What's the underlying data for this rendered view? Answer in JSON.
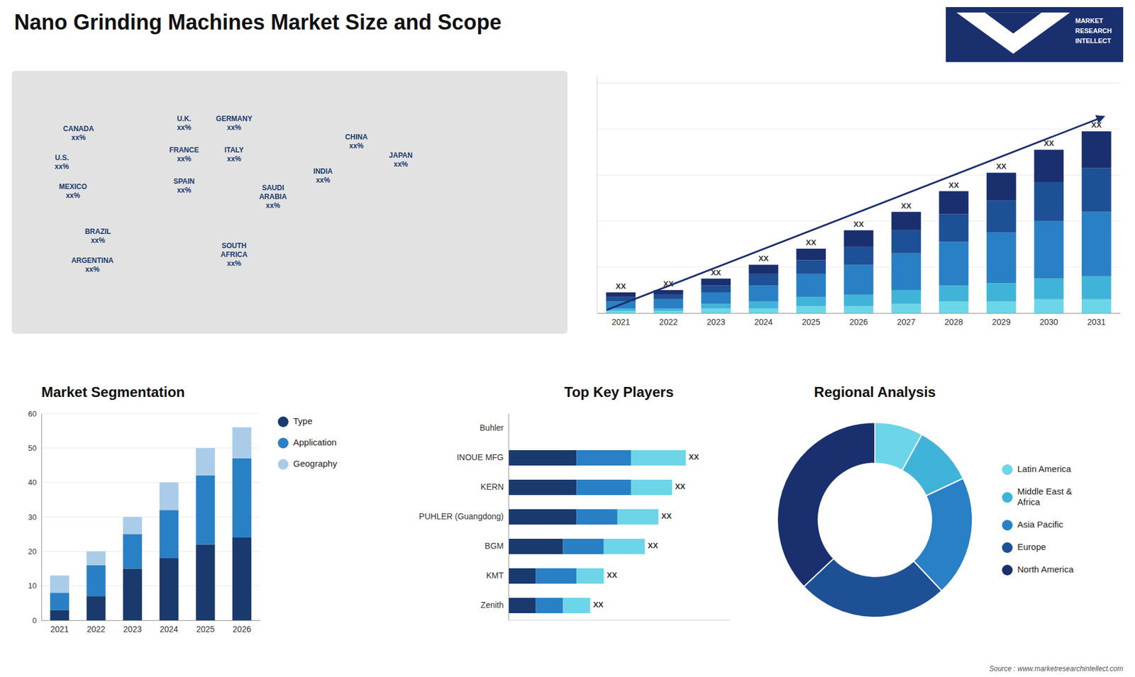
{
  "title": "Nano Grinding Machines Market Size and Scope",
  "annotations": [
    "MARKET\nRESEARCH\nINTELLECT",
    "Source : www.marketresearchintellect.com"
  ],
  "chart_data": [
    {
      "type": "map",
      "color": "#1a3a6e",
      "annotations": [
        "CANADA\nxx%",
        "U.S.\nxx%",
        "MEXICO\nxx%",
        "BRAZIL\nxx%",
        "ARGENTINA\nxx%",
        "U.K.\nxx%",
        "FRANCE\nxx%",
        "SPAIN\nxx%",
        "GERMANY\nxx%",
        "ITALY\nxx%",
        "SAUDI\nARABIA\nxx%",
        "SOUTH\nAFRICA\nxx%",
        "CHINA\nxx%",
        "INDIA\nxx%",
        "JAPAN\nxx%"
      ]
    },
    {
      "type": "bar",
      "stacked": true,
      "categories": [
        "2021",
        "2022",
        "2023",
        "2024",
        "2025",
        "2026",
        "2027",
        "2028",
        "2029",
        "2030",
        "2031"
      ],
      "series": [
        {
          "color": "#6dd5e8",
          "values": [
            1,
            1,
            2,
            2,
            3,
            3,
            4,
            5,
            5,
            6,
            6
          ]
        },
        {
          "color": "#40b4d8",
          "values": [
            1,
            1,
            2,
            3,
            4,
            5,
            6,
            7,
            8,
            9,
            10
          ]
        },
        {
          "color": "#2980c4",
          "values": [
            3,
            4,
            5,
            7,
            10,
            13,
            16,
            19,
            22,
            25,
            28
          ]
        },
        {
          "color": "#1e5096",
          "values": [
            2,
            2,
            3,
            5,
            6,
            8,
            10,
            12,
            14,
            17,
            19
          ]
        },
        {
          "color": "#1a2f6e",
          "values": [
            2,
            2,
            3,
            4,
            5,
            7,
            8,
            10,
            12,
            14,
            16
          ]
        }
      ],
      "ylim": [
        0,
        102.7
      ],
      "yticks": [
        0,
        20,
        40,
        60,
        80,
        100
      ],
      "grid": true,
      "tick_labels": "x",
      "annotations": [
        "XX",
        "XX",
        "XX",
        "XX",
        "XX",
        "XX",
        "XX",
        "XX",
        "XX",
        "XX",
        "XX"
      ]
    },
    {
      "type": "bar",
      "stacked": true,
      "title": "Market Segmentation",
      "categories": [
        "2021",
        "2022",
        "2023",
        "2024",
        "2025",
        "2026"
      ],
      "series": [
        {
          "name": "Type",
          "color": "#1a3a6e",
          "values": [
            3,
            7,
            15,
            18,
            22,
            24
          ]
        },
        {
          "name": "Application",
          "color": "#2980c4",
          "values": [
            5,
            9,
            10,
            14,
            20,
            23
          ]
        },
        {
          "name": "Geography",
          "color": "#aacce8",
          "values": [
            5,
            4,
            5,
            8,
            8,
            9
          ]
        }
      ],
      "ylim": [
        0,
        60
      ],
      "yticks": [
        0,
        10,
        20,
        30,
        40,
        50,
        60
      ],
      "grid": true,
      "legend": "right"
    },
    {
      "type": "bar",
      "orientation": "horizontal",
      "stacked": true,
      "title": "Top Key Players",
      "categories": [
        "Buhler",
        "INOUE MFG",
        "KERN",
        "PUHLER (Guangdong)",
        "BGM",
        "KMT",
        "Zenith"
      ],
      "series": [
        {
          "color": "#1a3a6e",
          "values": [
            0,
            5,
            5,
            5,
            4,
            2,
            2
          ]
        },
        {
          "color": "#2980c4",
          "values": [
            0,
            4,
            4,
            3,
            3,
            3,
            2
          ]
        },
        {
          "color": "#6dd5e8",
          "values": [
            0,
            4,
            3,
            3,
            3,
            2,
            2
          ]
        }
      ],
      "xlim": [
        0,
        16.25
      ],
      "tick_labels": "y",
      "annotations": [
        "XX",
        "XX",
        "XX",
        "XX",
        "XX",
        "XX"
      ]
    },
    {
      "type": "donut",
      "title": "Regional Analysis",
      "categories": [
        "Latin America",
        "Middle East &\nAfrica",
        "Asia Pacific",
        "Europe",
        "North America"
      ],
      "values": [
        8,
        10,
        20,
        25,
        37
      ],
      "colors": [
        "#6dd5e8",
        "#40b4d8",
        "#2980c4",
        "#1e5096",
        "#1a2f6e"
      ],
      "legend": "right"
    }
  ]
}
